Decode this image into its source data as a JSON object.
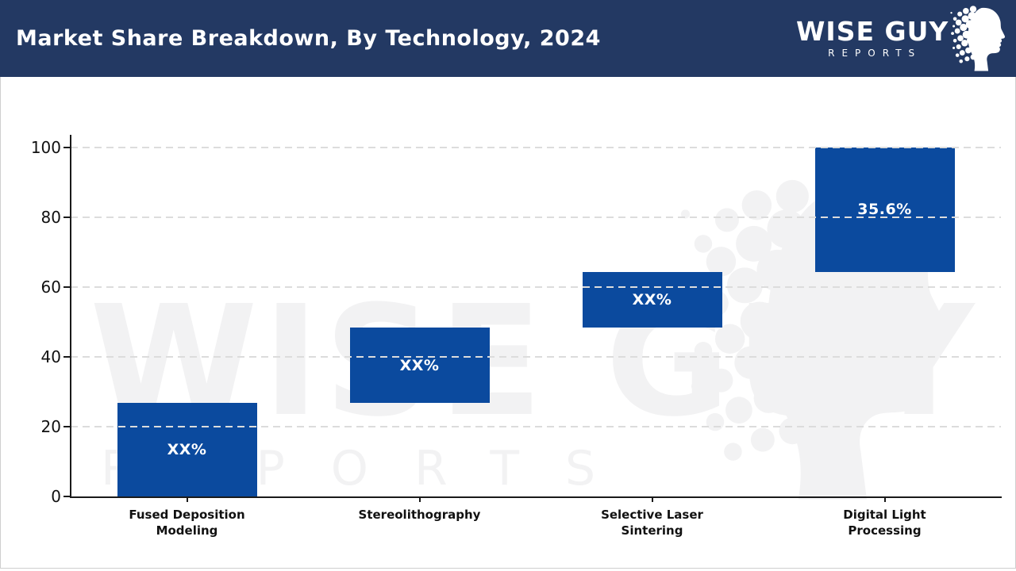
{
  "header": {
    "title": "Market Share Breakdown, By Technology, 2024",
    "brand": {
      "name_top": "WISE GUY",
      "name_bottom": "REPORTS"
    }
  },
  "watermark": {
    "text_top": "WISE GUY",
    "text_bottom": "REPORTS"
  },
  "colors": {
    "header_bg": "#233963",
    "bar_fill": "#0B4A9E",
    "bar_label": "#FFFFFF",
    "gridline": "#DCDCDC",
    "axis": "#1A1A1A",
    "watermark": "#F2F2F3",
    "text": "#111111",
    "frame_border": "#CFCFCF"
  },
  "chart_data": {
    "type": "bar",
    "subtype": "waterfall",
    "title": "Market Share Breakdown, By Technology, 2024",
    "categories": [
      "Fused Deposition Modeling",
      "Stereolithography",
      "Selective Laser Sintering",
      "Digital Light Processing"
    ],
    "category_label_lines": [
      [
        "Fused Deposition",
        "Modeling"
      ],
      [
        "Stereolithography"
      ],
      [
        "Selective Laser",
        "Sintering"
      ],
      [
        "Digital Light",
        "Processing"
      ]
    ],
    "bars": [
      {
        "category": "Fused Deposition Modeling",
        "start": 0,
        "end": 26.8,
        "label": "XX%"
      },
      {
        "category": "Stereolithography",
        "start": 26.8,
        "end": 48.4,
        "label": "XX%"
      },
      {
        "category": "Selective Laser Sintering",
        "start": 48.4,
        "end": 64.4,
        "label": "XX%"
      },
      {
        "category": "Digital Light Processing",
        "start": 64.4,
        "end": 100,
        "label": "35.6%"
      }
    ],
    "y_ticks": [
      0,
      20,
      40,
      60,
      80,
      100
    ],
    "ylim": [
      0,
      104
    ],
    "xlabel": "",
    "ylabel": "",
    "grid": "dashed-horizontal",
    "legend": "none"
  }
}
